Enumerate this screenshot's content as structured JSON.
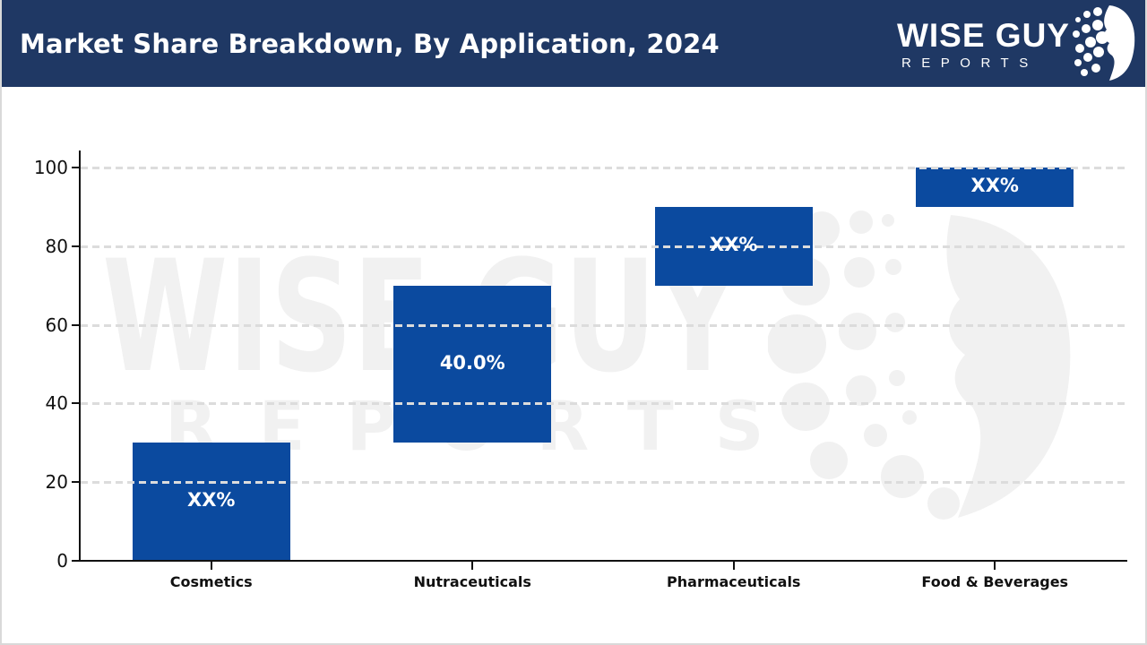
{
  "header": {
    "title": "Market Share Breakdown, By Application, 2024",
    "bg_color": "#1f3864",
    "logo": {
      "line1": "WISE GUY",
      "line2": "REPORTS"
    }
  },
  "watermark": {
    "line1": "WISE GUY",
    "line2": "REPORTS",
    "color": "#f1f1f1"
  },
  "chart_data": {
    "type": "bar",
    "subtype": "waterfall",
    "title": "Market Share Breakdown, By Application, 2024",
    "categories": [
      "Cosmetics",
      "Nutraceuticals",
      "Pharmaceuticals",
      "Food & Beverages"
    ],
    "series": [
      {
        "name": "Market Share",
        "segments": [
          {
            "category": "Cosmetics",
            "start": 0,
            "end": 30,
            "value": 30,
            "label": "XX%"
          },
          {
            "category": "Nutraceuticals",
            "start": 30,
            "end": 70,
            "value": 40,
            "label": "40.0%"
          },
          {
            "category": "Pharmaceuticals",
            "start": 70,
            "end": 90,
            "value": 20,
            "label": "XX%"
          },
          {
            "category": "Food & Beverages",
            "start": 90,
            "end": 100,
            "value": 10,
            "label": "XX%"
          }
        ]
      }
    ],
    "xlabel": "",
    "ylabel": "",
    "ylim": [
      0,
      100
    ],
    "yticks": [
      0,
      20,
      40,
      60,
      80,
      100
    ],
    "grid": "horizontal-dashed",
    "legend": "none",
    "bar_color": "#0b4a9f",
    "bar_label_color": "#ffffff",
    "grid_color": "#dcdcdc",
    "axis_color": "#111111"
  }
}
